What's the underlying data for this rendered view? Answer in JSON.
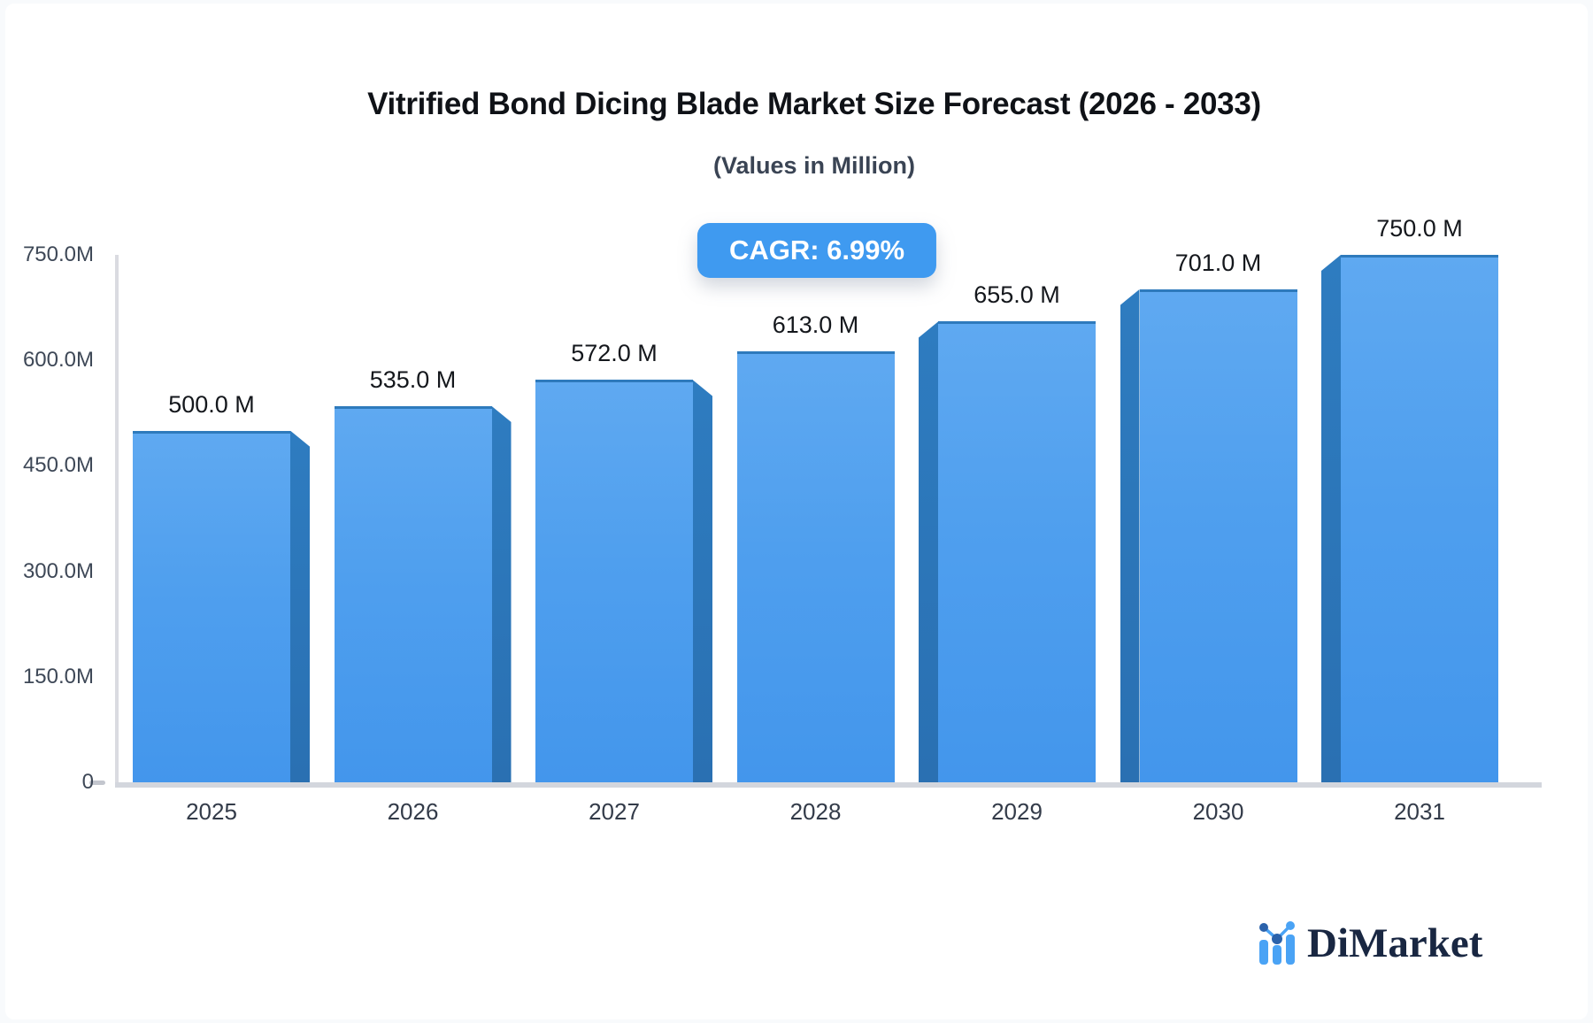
{
  "title": "Vitrified Bond Dicing Blade Market Size Forecast (2026 - 2033)",
  "subtitle": "(Values in Million)",
  "cagr_badge": "CAGR: 6.99%",
  "watermark": {
    "brand": "DiMarket",
    "icon": "bar-chart-sparkline-icon"
  },
  "colors": {
    "bar_front": "#4d9fef",
    "bar_side": "#2b74b6",
    "badge_bg": "#3f9af0",
    "badge_text": "#ffffff",
    "axis_line": "#dadbe1",
    "baseline": "#d3d6dd",
    "logo_navy": "#192742",
    "logo_blue": "#4aa3f5"
  },
  "chart_data": {
    "type": "bar",
    "title": "Vitrified Bond Dicing Blade Market Size Forecast (2026 - 2033)",
    "subtitle": "(Values in Million)",
    "categories": [
      "2025",
      "2026",
      "2027",
      "2028",
      "2029",
      "2030",
      "2031"
    ],
    "values": [
      500,
      535,
      572,
      613,
      655,
      701,
      750
    ],
    "bar_labels": [
      "500.0 M",
      "535.0 M",
      "572.0 M",
      "613.0 M",
      "655.0 M",
      "701.0 M",
      "750.0 M"
    ],
    "unit": "Million",
    "xlabel": "",
    "ylabel": "",
    "ylim": [
      0,
      750
    ],
    "y_ticks": [
      "750.0M",
      "600.0M",
      "450.0M",
      "300.0M",
      "150.0M",
      "0"
    ],
    "y_tick_values": [
      750,
      600,
      450,
      300,
      150,
      0
    ],
    "grid": false,
    "legend": false,
    "style": "3d-perspective-bars, center vanishing point",
    "annotation": "CAGR: 6.99%"
  }
}
